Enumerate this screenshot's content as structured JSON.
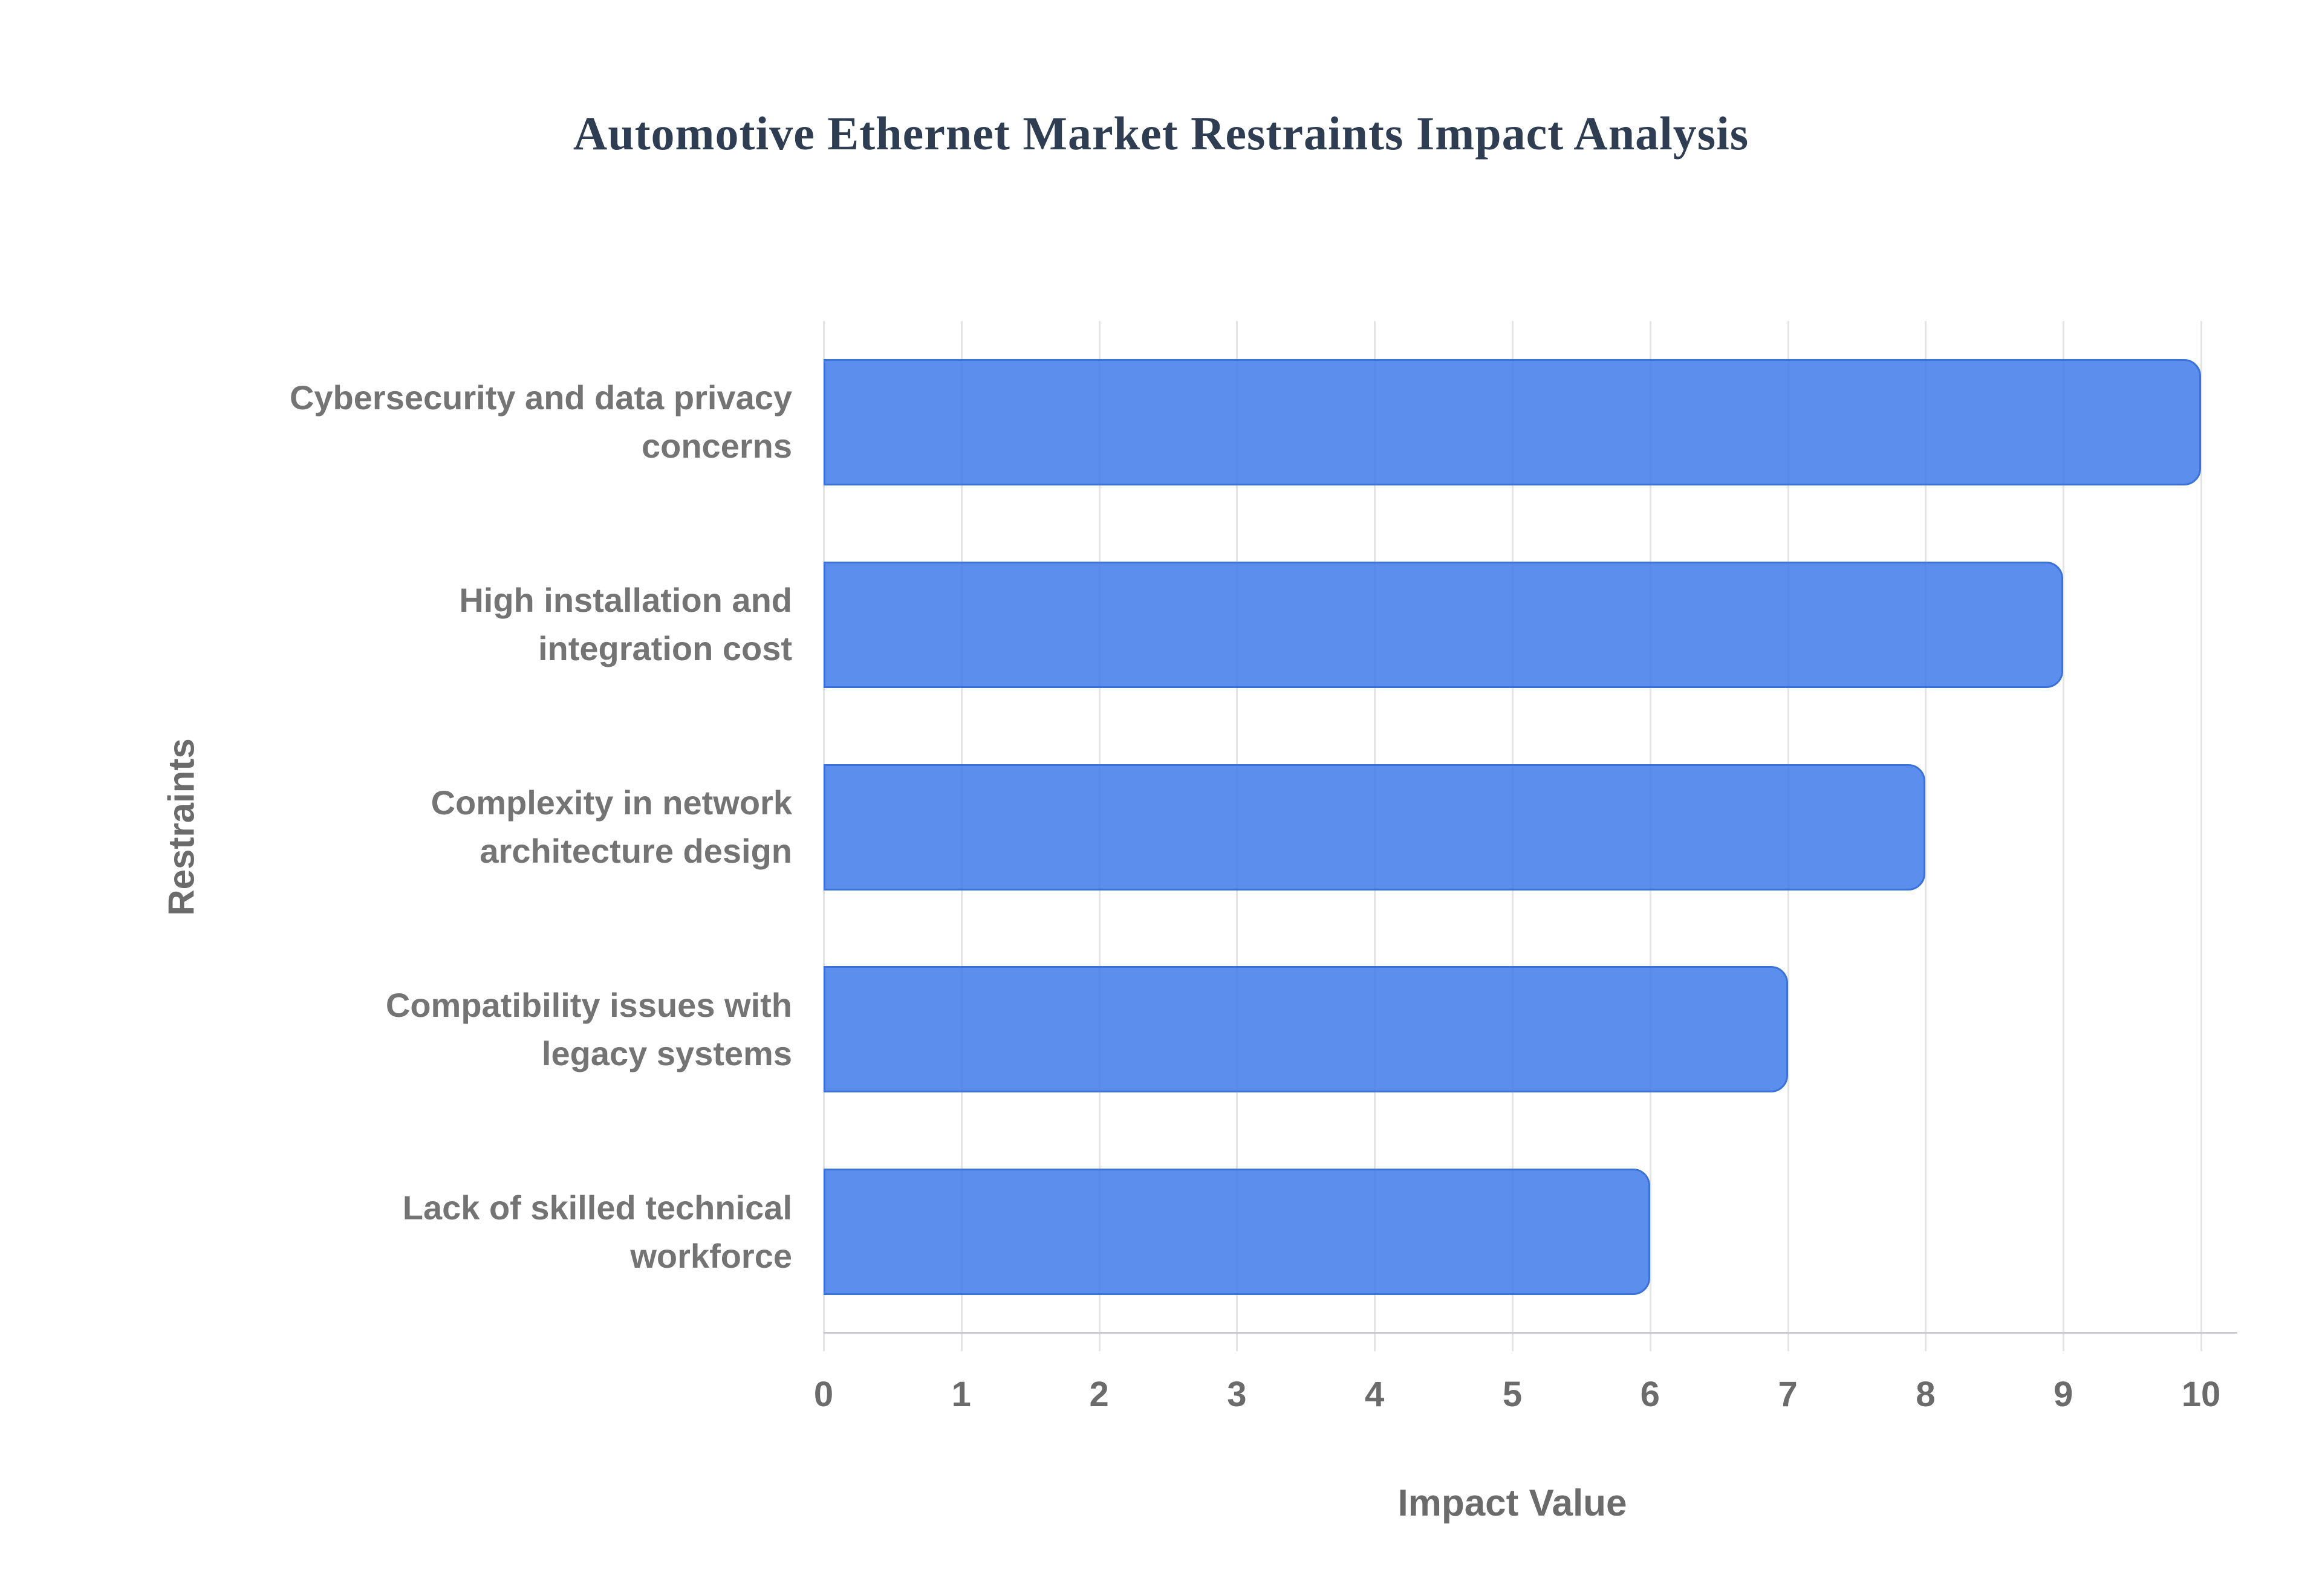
{
  "page": {
    "background": "#ffffff"
  },
  "header": {
    "title": "Automotive Ethernet Market Restraints Impact Analysis"
  },
  "chart_data": {
    "type": "bar",
    "orientation": "horizontal",
    "title": "Automotive Ethernet Market Restraints Impact Analysis",
    "categories": [
      "Cybersecurity and data privacy\nconcerns",
      "High installation and\nintegration cost",
      "Complexity in network\narchitecture design",
      "Compatibility issues with\nlegacy systems",
      "Lack of skilled technical\nworkforce"
    ],
    "values": [
      10,
      9,
      8,
      7,
      6
    ],
    "xlabel": "Impact Value",
    "ylabel": "Restraints",
    "xlim": [
      0,
      10
    ],
    "xticks": [
      0,
      1,
      2,
      3,
      4,
      5,
      6,
      7,
      8,
      9,
      10
    ],
    "grid": true,
    "legend": "none"
  },
  "colors": {
    "title_text": "#2e3d52",
    "bar_fill": "rgba(63,123,234,0.85)",
    "bar_border": "#3a72da",
    "gridline": "#e4e4e4",
    "axis_line": "#c8c8cc",
    "tick_text": "#6b6b6b",
    "category_text": "#747474",
    "axis_title_text": "#6b6b6b"
  }
}
